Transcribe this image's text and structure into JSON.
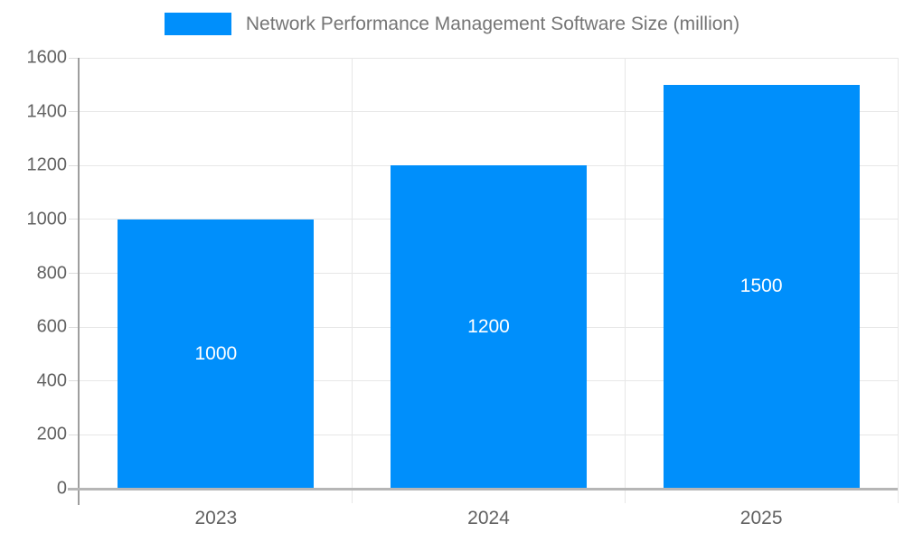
{
  "legend": {
    "label": "Network Performance Management Software Size (million)"
  },
  "chart_data": {
    "type": "bar",
    "categories": [
      "2023",
      "2024",
      "2025"
    ],
    "values": [
      1000,
      1200,
      1500
    ],
    "series_name": "Network Performance Management Software Size (million)",
    "title": "",
    "xlabel": "",
    "ylabel": "",
    "ylim": [
      0,
      1600
    ],
    "yticks": [
      0,
      200,
      400,
      600,
      800,
      1000,
      1200,
      1400,
      1600
    ],
    "grid": true,
    "legend_position": "top",
    "value_labels": [
      "1000",
      "1200",
      "1500"
    ],
    "ytick_labels": [
      "0",
      "200",
      "400",
      "600",
      "800",
      "1000",
      "1200",
      "1400",
      "1600"
    ]
  },
  "colors": {
    "bar": "#008FFB",
    "gridline": "#e7e7e7",
    "axis_line": "#9e9e9e",
    "baseline": "#b6b6b6",
    "tick_text": "#616161",
    "legend_text": "#757575",
    "value_text": "#ffffff"
  }
}
